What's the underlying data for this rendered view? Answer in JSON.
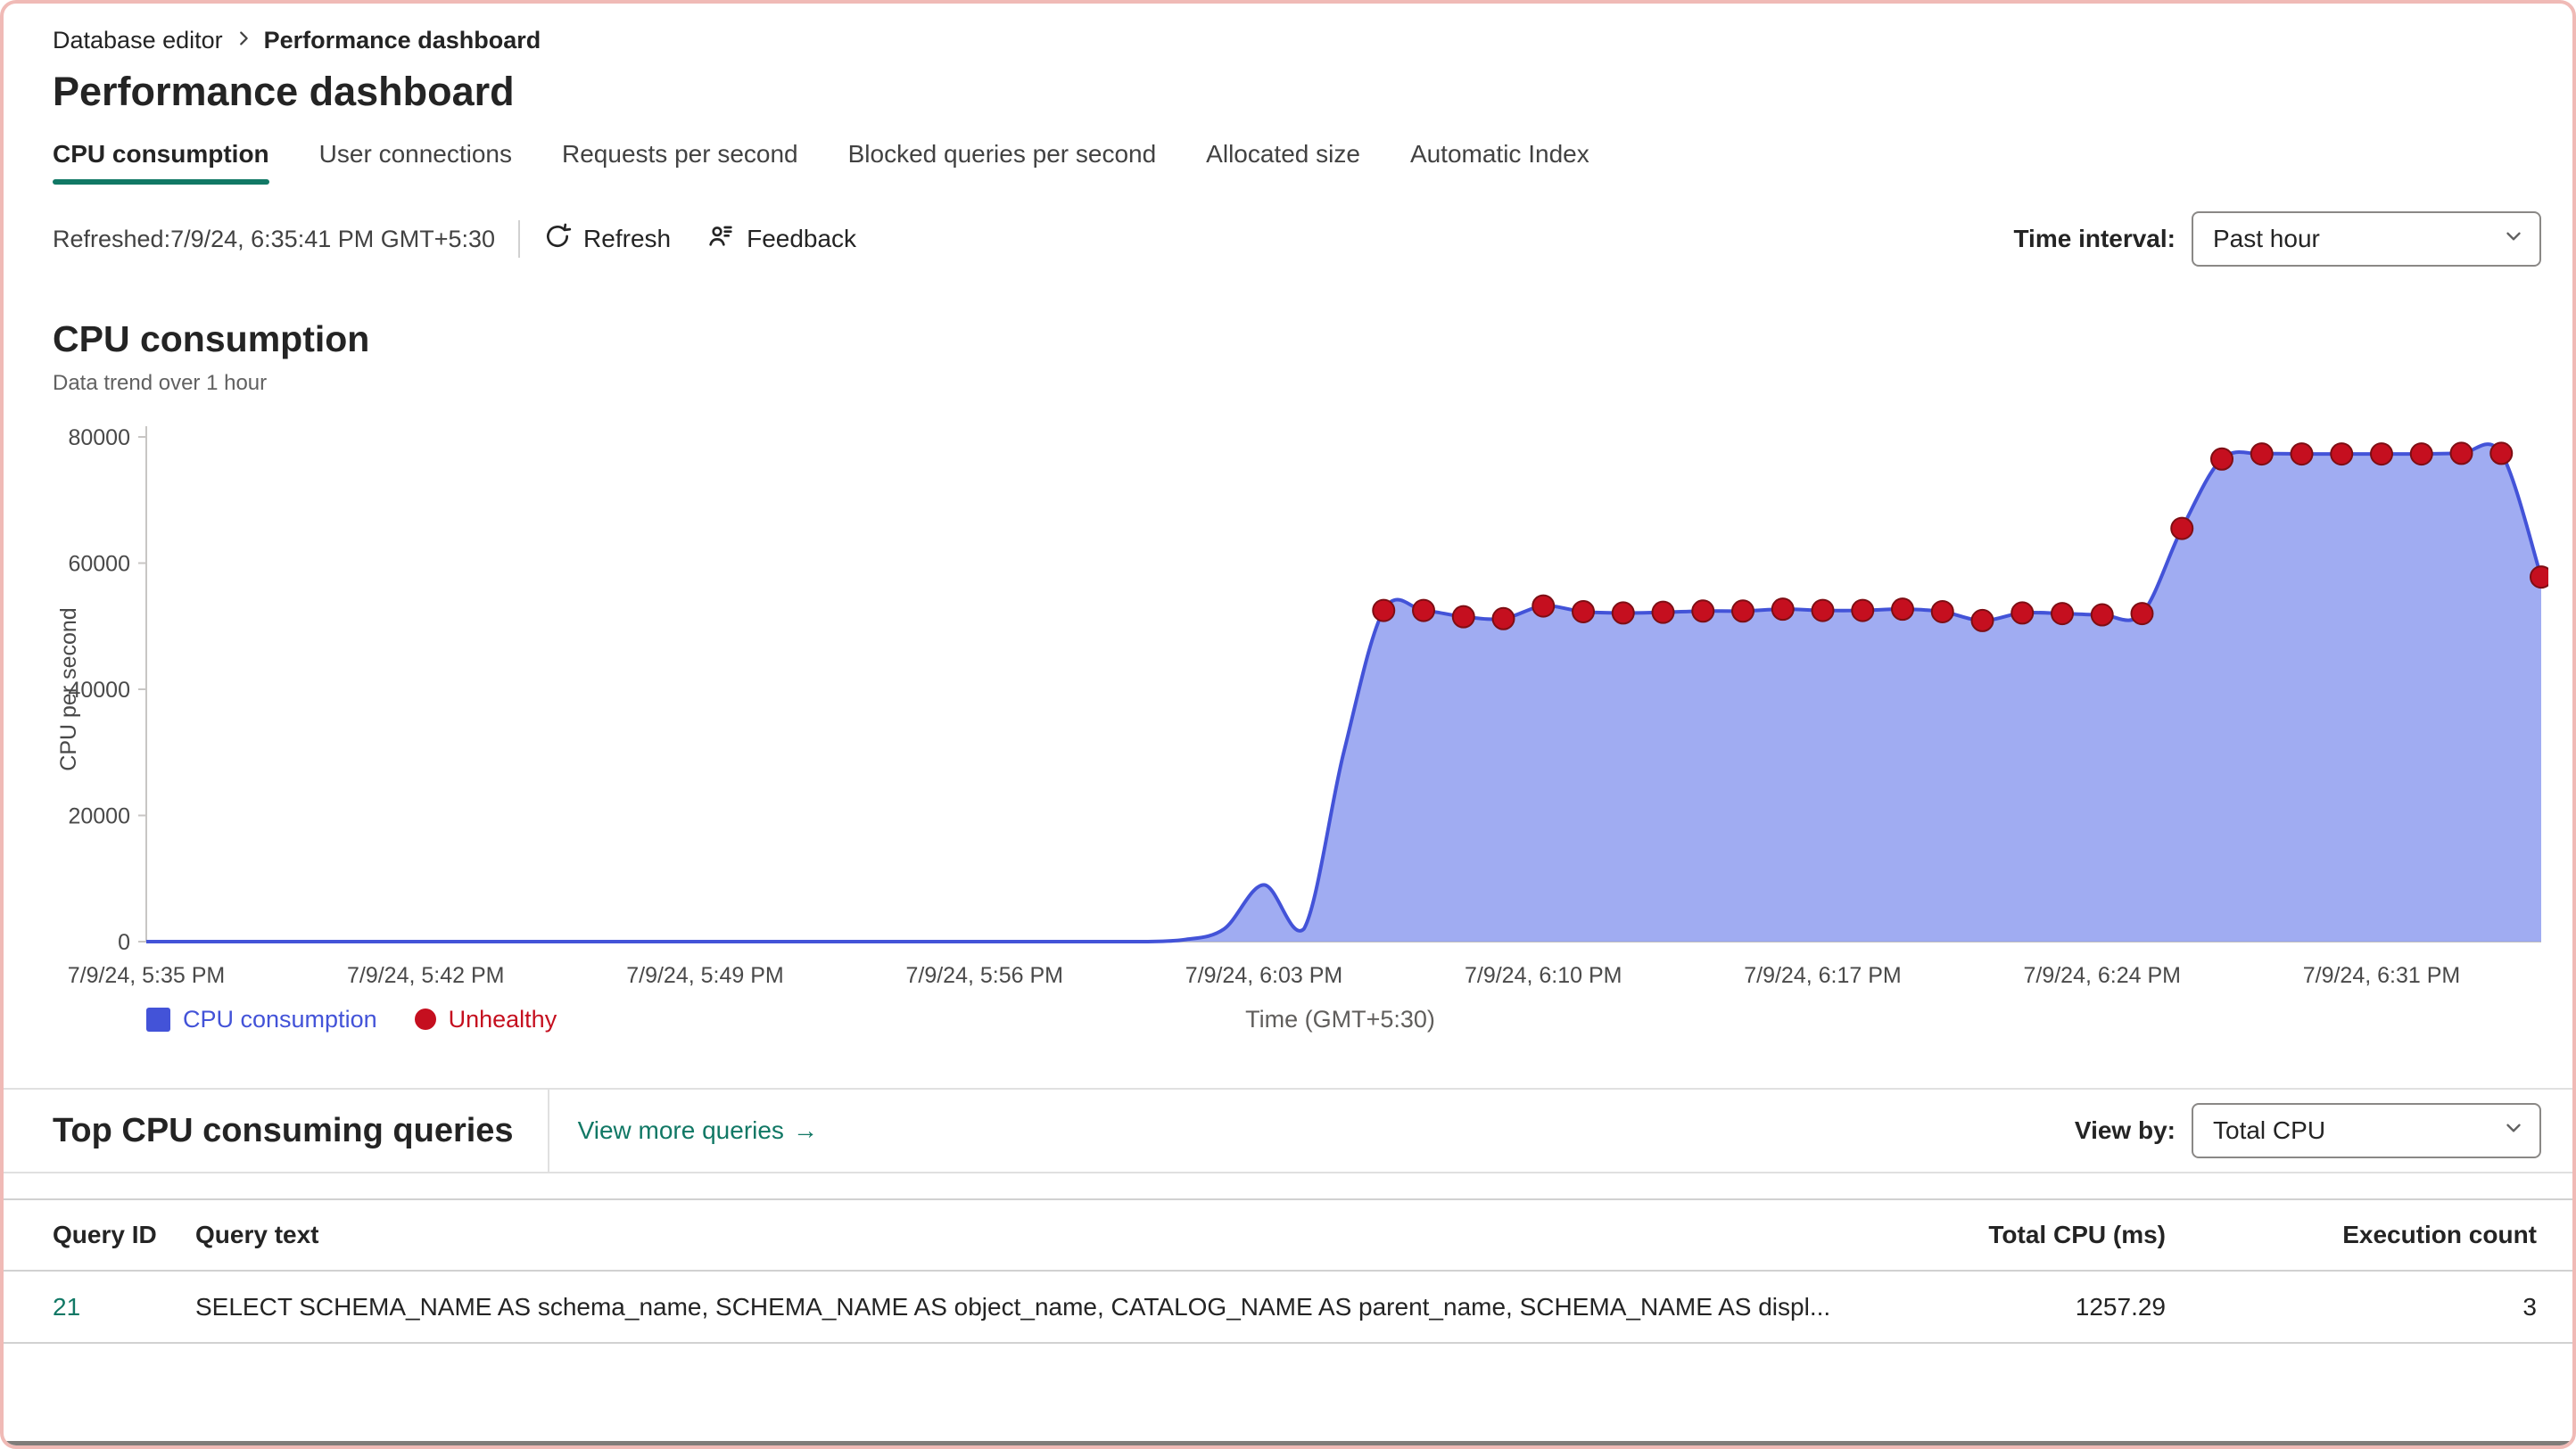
{
  "colors": {
    "accent": "#117865",
    "chart_line": "#4353d8",
    "chart_fill": "#8f9ef0",
    "unhealthy": "#c50f1f",
    "unhealthy_stroke": "#7e0e14"
  },
  "icons": {
    "view_more_arrow": "→"
  },
  "breadcrumb": {
    "items": [
      "Database editor",
      "Performance dashboard"
    ]
  },
  "page_title": "Performance dashboard",
  "tabs": [
    {
      "label": "CPU consumption",
      "active": true
    },
    {
      "label": "User connections",
      "active": false
    },
    {
      "label": "Requests per second",
      "active": false
    },
    {
      "label": "Blocked queries per second",
      "active": false
    },
    {
      "label": "Allocated size",
      "active": false
    },
    {
      "label": "Automatic Index",
      "active": false
    }
  ],
  "toolbar": {
    "refreshed_text": "Refreshed:7/9/24, 6:35:41 PM GMT+5:30",
    "refresh_label": "Refresh",
    "feedback_label": "Feedback",
    "time_interval_label": "Time interval:",
    "time_interval_value": "Past hour"
  },
  "chart_section": {
    "title": "CPU consumption",
    "subtitle": "Data trend over 1 hour"
  },
  "chart_data": {
    "type": "area",
    "series_name": "CPU consumption",
    "unhealthy_label": "Unhealthy",
    "ylabel": "CPU per second",
    "xlabel": "Time (GMT+5:30)",
    "ylim": [
      0,
      80000
    ],
    "y_ticks": [
      0,
      20000,
      40000,
      60000,
      80000
    ],
    "x_tick_labels": [
      "7/9/24, 5:35 PM",
      "7/9/24, 5:42 PM",
      "7/9/24, 5:49 PM",
      "7/9/24, 5:56 PM",
      "7/9/24, 6:03 PM",
      "7/9/24, 6:10 PM",
      "7/9/24, 6:17 PM",
      "7/9/24, 6:24 PM",
      "7/9/24, 6:31 PM"
    ],
    "x_tick_minutes": [
      0,
      7,
      14,
      21,
      28,
      35,
      42,
      49,
      56
    ],
    "x_minutes_per_point": 1,
    "values": [
      0,
      0,
      0,
      0,
      0,
      0,
      0,
      0,
      0,
      0,
      0,
      0,
      0,
      0,
      0,
      0,
      0,
      0,
      0,
      0,
      0,
      0,
      0,
      0,
      0,
      0,
      300,
      2000,
      9000,
      2000,
      30000,
      52500,
      52500,
      51500,
      51200,
      53200,
      52300,
      52100,
      52200,
      52400,
      52400,
      52700,
      52500,
      52500,
      52700,
      52300,
      50900,
      52100,
      52000,
      51800,
      52000,
      65500,
      76500,
      77300,
      77300,
      77300,
      77300,
      77300,
      77400,
      77400,
      57800
    ],
    "unhealthy_indices": [
      31,
      32,
      33,
      34,
      35,
      36,
      37,
      38,
      39,
      40,
      41,
      42,
      43,
      44,
      45,
      46,
      47,
      48,
      49,
      50,
      51,
      52,
      53,
      54,
      55,
      56,
      57,
      58,
      59,
      60
    ]
  },
  "queries_section": {
    "title": "Top CPU consuming queries",
    "view_more_label": "View more queries",
    "view_by_label": "View by:",
    "view_by_value": "Total CPU",
    "table": {
      "columns": [
        "Query ID",
        "Query text",
        "Total CPU (ms)",
        "Execution count"
      ],
      "rows": [
        {
          "query_id": "21",
          "query_text": "SELECT SCHEMA_NAME AS schema_name, SCHEMA_NAME AS object_name, CATALOG_NAME AS parent_name, SCHEMA_NAME AS displ...",
          "total_cpu_ms": "1257.29",
          "execution_count": "3"
        }
      ]
    }
  }
}
